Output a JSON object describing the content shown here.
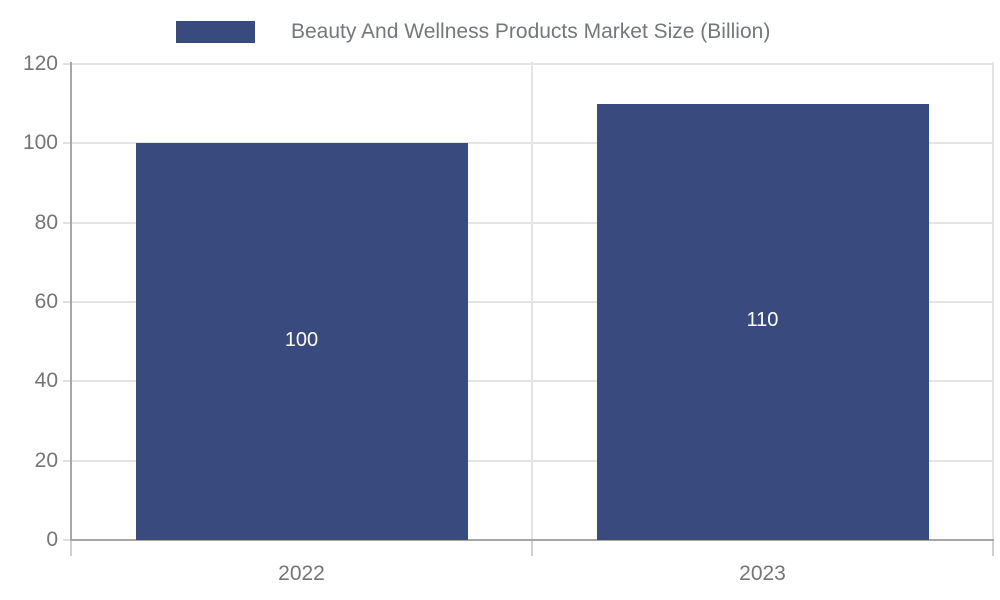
{
  "legend": {
    "label": "Beauty And Wellness Products Market Size (Billion)",
    "swatch_color": "#384A7E"
  },
  "chart_data": {
    "type": "bar",
    "title": "Beauty And Wellness Products Market Size (Billion)",
    "categories": [
      "2022",
      "2023"
    ],
    "values": [
      100,
      110
    ],
    "bar_value_labels": [
      "100",
      "110"
    ],
    "xlabel": "",
    "ylabel": "",
    "ylim": [
      0,
      120
    ],
    "yticks": [
      0,
      20,
      40,
      60,
      80,
      100,
      120
    ],
    "grid": true,
    "legend_position": "top",
    "series_name": "Beauty And Wellness Products Market Size (Billion)"
  },
  "colors": {
    "bar": "#384A7E",
    "value_label": "#FFFFFF",
    "gridline": "#E4E4E4",
    "axis_line": "#A6A6A6",
    "outer_tick": "#CDD1D6",
    "axis_label": "#757575",
    "legend_text": "#74777B",
    "background": "#FFFFFF"
  }
}
